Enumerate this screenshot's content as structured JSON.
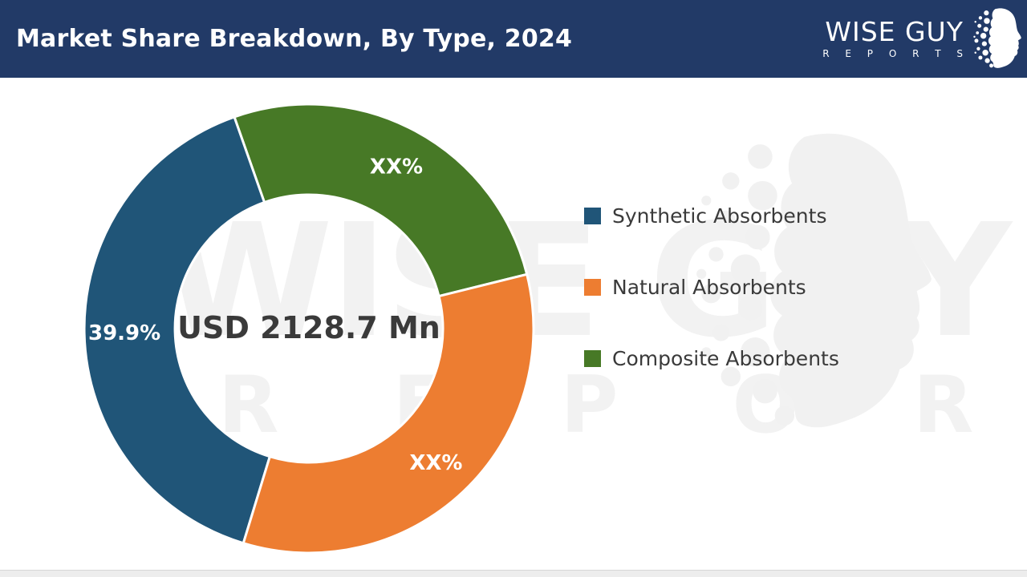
{
  "header": {
    "title": "Market Share Breakdown, By Type, 2024",
    "background_color": "#223A67",
    "logo": {
      "line1": "WISE GUY",
      "line2": "R E P O R T S"
    }
  },
  "watermark": {
    "line1": "WISE GUY",
    "line2": "R E P O R T S"
  },
  "chart_data": {
    "type": "pie",
    "variant": "donut",
    "title": "Market Share Breakdown, By Type, 2024",
    "center_label": "USD 2128.7 Mn",
    "unit": "USD Mn",
    "donut_hole_ratio": 0.596,
    "start_angle_deg": 14,
    "draw_order_ccw": [
      "Composite Absorbents",
      "Synthetic Absorbents",
      "Natural Absorbents"
    ],
    "legend_position": "right",
    "segments": [
      {
        "name": "Synthetic Absorbents",
        "value_pct": 39.9,
        "label": "39.9%",
        "color": "#205578"
      },
      {
        "name": "Natural Absorbents",
        "value_pct": 33.6,
        "label": "XX%",
        "color": "#ED7D31"
      },
      {
        "name": "Composite Absorbents",
        "value_pct": 26.5,
        "label": "XX%",
        "color": "#477926"
      }
    ]
  },
  "legend": {
    "items": [
      {
        "label": "Synthetic Absorbents",
        "color": "#205578"
      },
      {
        "label": "Natural Absorbents",
        "color": "#ED7D31"
      },
      {
        "label": "Composite Absorbents",
        "color": "#477926"
      }
    ]
  }
}
